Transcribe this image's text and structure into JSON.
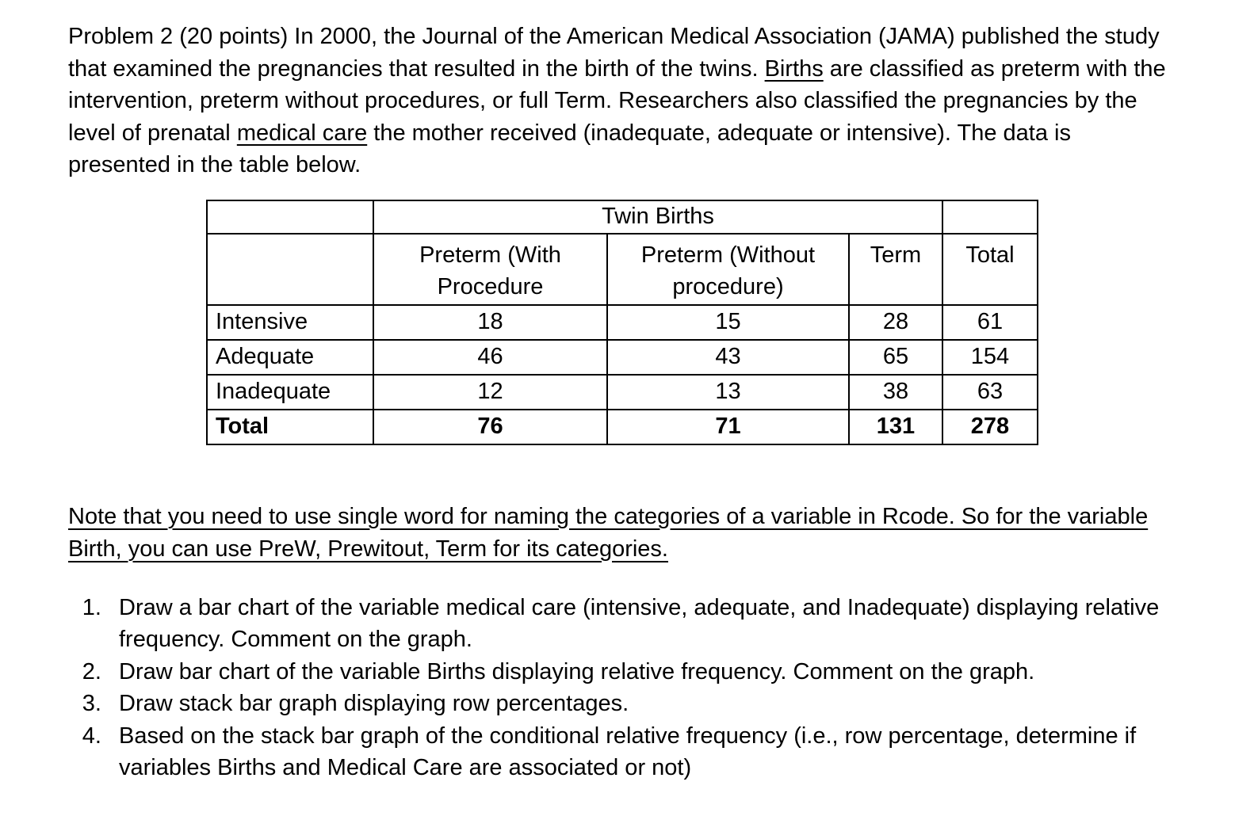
{
  "colors": {
    "text": "#000000",
    "background": "#ffffff",
    "table_border": "#000000"
  },
  "intro": {
    "seg1": "Problem 2 (20 points) In 2000, the Journal of the American Medical Association (JAMA) published the study that examined the pregnancies that resulted in the birth of the twins. ",
    "seg2_underlined": "Births",
    "seg3": " are classified as preterm with the intervention, preterm without procedures, or full Term. Researchers also classified the pregnancies by the level of prenatal ",
    "seg4_underlined": "medical care",
    "seg5": " the mother received (inadequate, adequate or intensive). The data is presented in the table below."
  },
  "table": {
    "group_header": "Twin Births",
    "columns": [
      "Preterm (With Procedure",
      "Preterm (Without procedure)",
      "Term",
      "Total"
    ],
    "rows": [
      {
        "label": "Intensive",
        "values": [
          "18",
          "15",
          "28",
          "61"
        ]
      },
      {
        "label": "Adequate",
        "values": [
          "46",
          "43",
          "65",
          "154"
        ]
      },
      {
        "label": "Inadequate",
        "values": [
          "12",
          "13",
          "38",
          "63"
        ]
      },
      {
        "label": "Total",
        "values": [
          "76",
          "71",
          "131",
          "278"
        ]
      }
    ]
  },
  "note": "Note that you need to use single word for naming the categories of a variable in Rcode. So for the variable Birth, you can use PreW, Prewitout, Term for its categories.",
  "tasks": [
    "Draw a bar chart of the variable medical care (intensive, adequate, and Inadequate) displaying relative frequency. Comment on the graph.",
    "Draw bar chart of the variable Births displaying relative frequency. Comment on the graph.",
    "Draw stack bar graph displaying row percentages.",
    "Based on the stack bar graph of the conditional relative frequency (i.e., row percentage, determine if variables Births and Medical Care are associated or not)"
  ]
}
